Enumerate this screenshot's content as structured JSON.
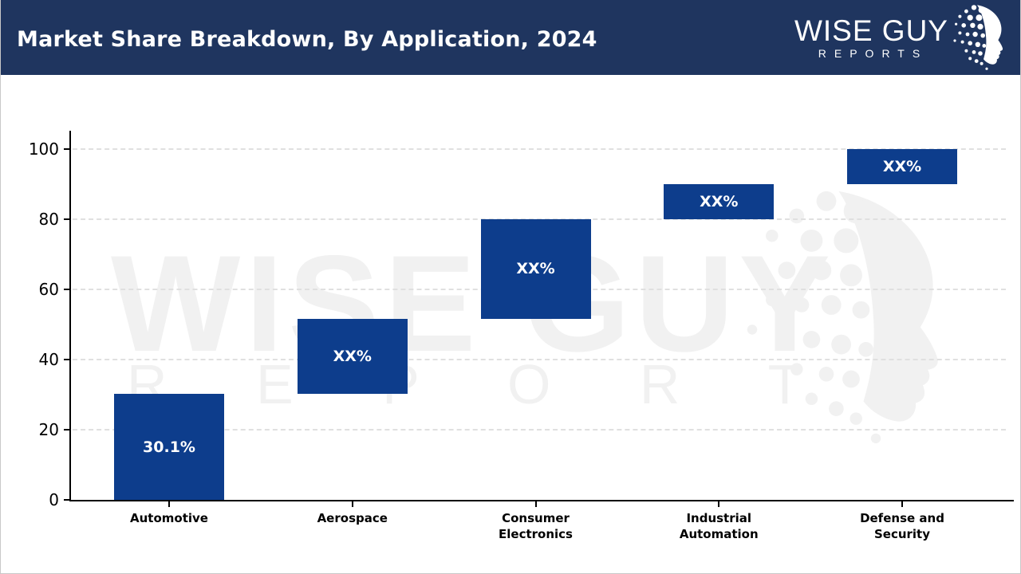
{
  "header": {
    "title": "Market Share Breakdown, By Application, 2024",
    "logo": {
      "line1": "WISE GUY",
      "line2": "REPORTS"
    }
  },
  "watermark": {
    "line1": "WISE GUY",
    "line2": "R E P O R T S"
  },
  "colors": {
    "header_bg": "#1f355f",
    "title_text": "#ffffff",
    "bar": "#0d3d8c",
    "bar_label_text": "#ffffff",
    "grid": "#e0e0e0",
    "axis": "#000000",
    "tick_text": "#000000",
    "watermark": "#f1f1f1",
    "page_border": "#c8c8c8"
  },
  "chart_data": {
    "type": "bar",
    "subtype": "waterfall",
    "title": "Market Share Breakdown, By Application, 2024",
    "categories": [
      "Automotive",
      "Aerospace",
      "Consumer\nElectronics",
      "Industrial\nAutomation",
      "Defense and\nSecurity"
    ],
    "segments": [
      {
        "category": "Automotive",
        "start": 0,
        "end": 30.1,
        "label": "30.1%"
      },
      {
        "category": "Aerospace",
        "start": 30.1,
        "end": 51.5,
        "label": "XX%"
      },
      {
        "category": "Consumer Electronics",
        "start": 51.5,
        "end": 80,
        "label": "XX%"
      },
      {
        "category": "Industrial Automation",
        "start": 80,
        "end": 90,
        "label": "XX%"
      },
      {
        "category": "Defense and Security",
        "start": 90,
        "end": 100,
        "label": "XX%"
      }
    ],
    "yticks": [
      0,
      20,
      40,
      60,
      80,
      100
    ],
    "ylim": [
      0,
      105
    ],
    "xlabel": "",
    "ylabel": "",
    "grid": "horizontal-dashed",
    "legend": "none",
    "bar_color": "#0d3d8c",
    "label_color": "#ffffff"
  }
}
